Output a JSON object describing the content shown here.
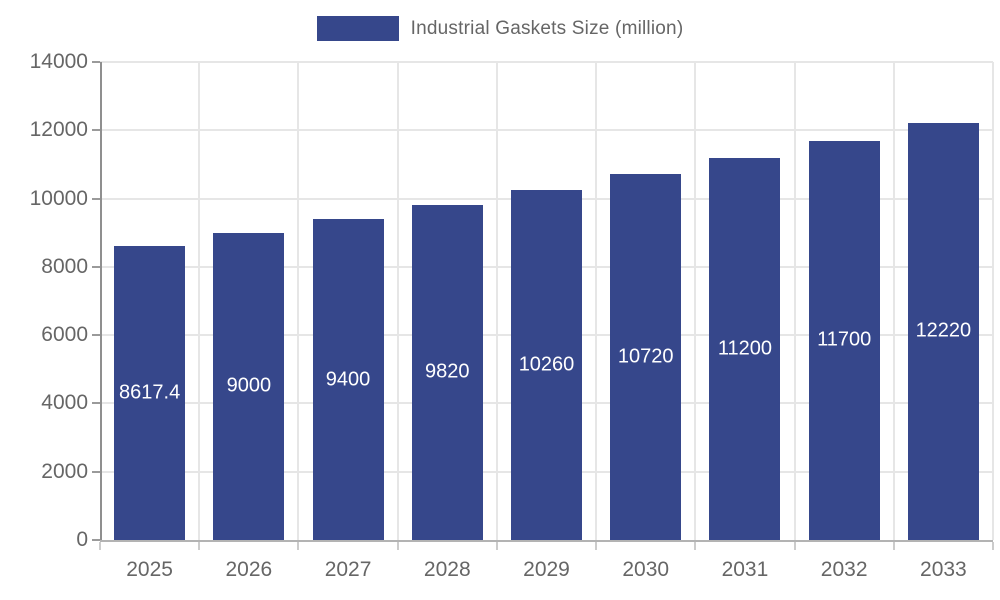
{
  "chart_data": {
    "type": "bar",
    "title": "",
    "legend": "Industrial Gaskets Size (million)",
    "legend_position": "top",
    "categories": [
      "2025",
      "2026",
      "2027",
      "2028",
      "2029",
      "2030",
      "2031",
      "2032",
      "2033"
    ],
    "values": [
      8617.4,
      9000,
      9400,
      9820,
      10260,
      10720,
      11200,
      11700,
      12220
    ],
    "value_labels": [
      "8617.4",
      "9000",
      "9400",
      "9820",
      "10260",
      "10720",
      "11200",
      "11700",
      "12220"
    ],
    "xlabel": "",
    "ylabel": "",
    "ylim": [
      0,
      14000
    ],
    "yticks": [
      0,
      2000,
      4000,
      6000,
      8000,
      10000,
      12000,
      14000
    ],
    "grid": true,
    "colors": {
      "bar": "#36478b",
      "grid": "#e6e6e6",
      "y_axis": "#8f8f8f",
      "x_axis": "#b3b3b3",
      "axis_text": "#666666",
      "data_label_text": "#ffffff",
      "background": "#ffffff"
    }
  }
}
